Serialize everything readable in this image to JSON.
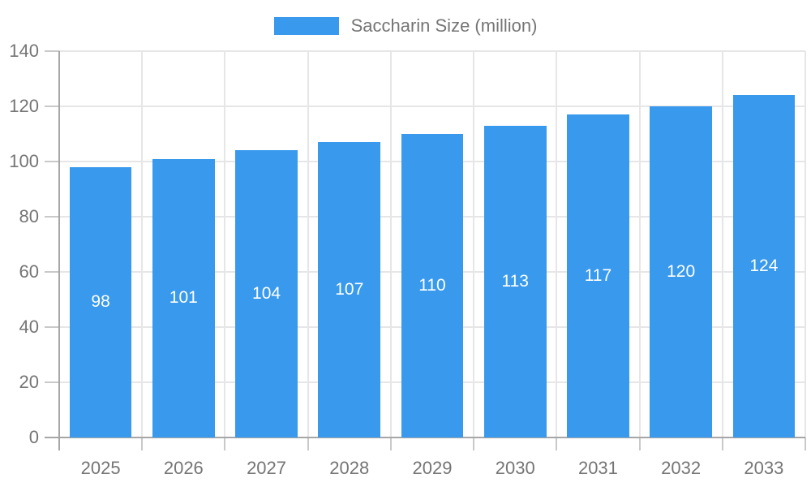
{
  "chart_data": {
    "type": "bar",
    "title": "Saccharin Size (million)",
    "categories": [
      "2025",
      "2026",
      "2027",
      "2028",
      "2029",
      "2030",
      "2031",
      "2032",
      "2033"
    ],
    "series": [
      {
        "name": "Saccharin Size (million)",
        "values": [
          98,
          101,
          104,
          107,
          110,
          113,
          117,
          120,
          124
        ]
      }
    ],
    "xlabel": "",
    "ylabel": "",
    "ylim": [
      0,
      140
    ],
    "yticks": [
      0,
      20,
      40,
      60,
      80,
      100,
      120,
      140
    ],
    "grid": true,
    "bar_value_labels_shown": true,
    "legend_position": "top-center",
    "colors": {
      "bar": "#3899ED",
      "bar_label": "#FFFFFF",
      "axis": "#A6A6A6",
      "tick": "#C9C9C9",
      "grid": "#E6E6E6",
      "text": "#757575"
    }
  }
}
